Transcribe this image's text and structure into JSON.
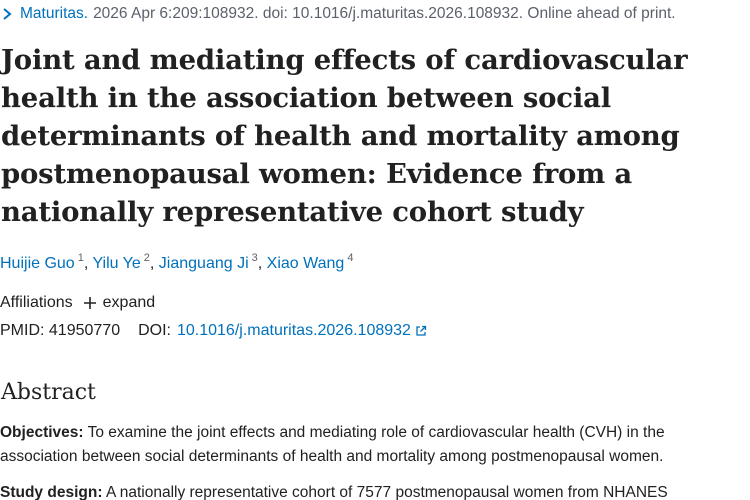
{
  "citation": {
    "journal": "Maturitas.",
    "details": "2026 Apr 6:209:108932. doi: 10.1016/j.maturitas.2026.108932. Online ahead of print."
  },
  "article": {
    "title": "Joint and mediating effects of cardiovascular health in the association between social determinants of health and mortality among postmenopausal women: Evidence from a nationally representative cohort study"
  },
  "authors": [
    {
      "name": "Huijie Guo",
      "sup": "1"
    },
    {
      "name": "Yilu Ye",
      "sup": "2"
    },
    {
      "name": "Jianguang Ji",
      "sup": "3"
    },
    {
      "name": "Xiao Wang",
      "sup": "4"
    }
  ],
  "affiliations": {
    "label": "Affiliations",
    "expand_label": "expand"
  },
  "identifiers": {
    "pmid_label": "PMID:",
    "pmid": "41950770",
    "doi_label": "DOI:",
    "doi": "10.1016/j.maturitas.2026.108932"
  },
  "abstract": {
    "heading": "Abstract",
    "objectives_label": "Objectives:",
    "objectives_text": "To examine the joint effects and mediating role of cardiovascular health (CVH) in the association between social determinants of health and mortality among postmenopausal women.",
    "design_label": "Study design:",
    "design_text": "A nationally representative cohort of 7577 postmenopausal women from NHANES"
  },
  "colors": {
    "link": "#0071bc",
    "text": "#212121",
    "muted": "#5b616b"
  },
  "icons": {
    "citation": "chevron-right-icon",
    "expand": "plus-icon",
    "external": "external-link-icon"
  }
}
